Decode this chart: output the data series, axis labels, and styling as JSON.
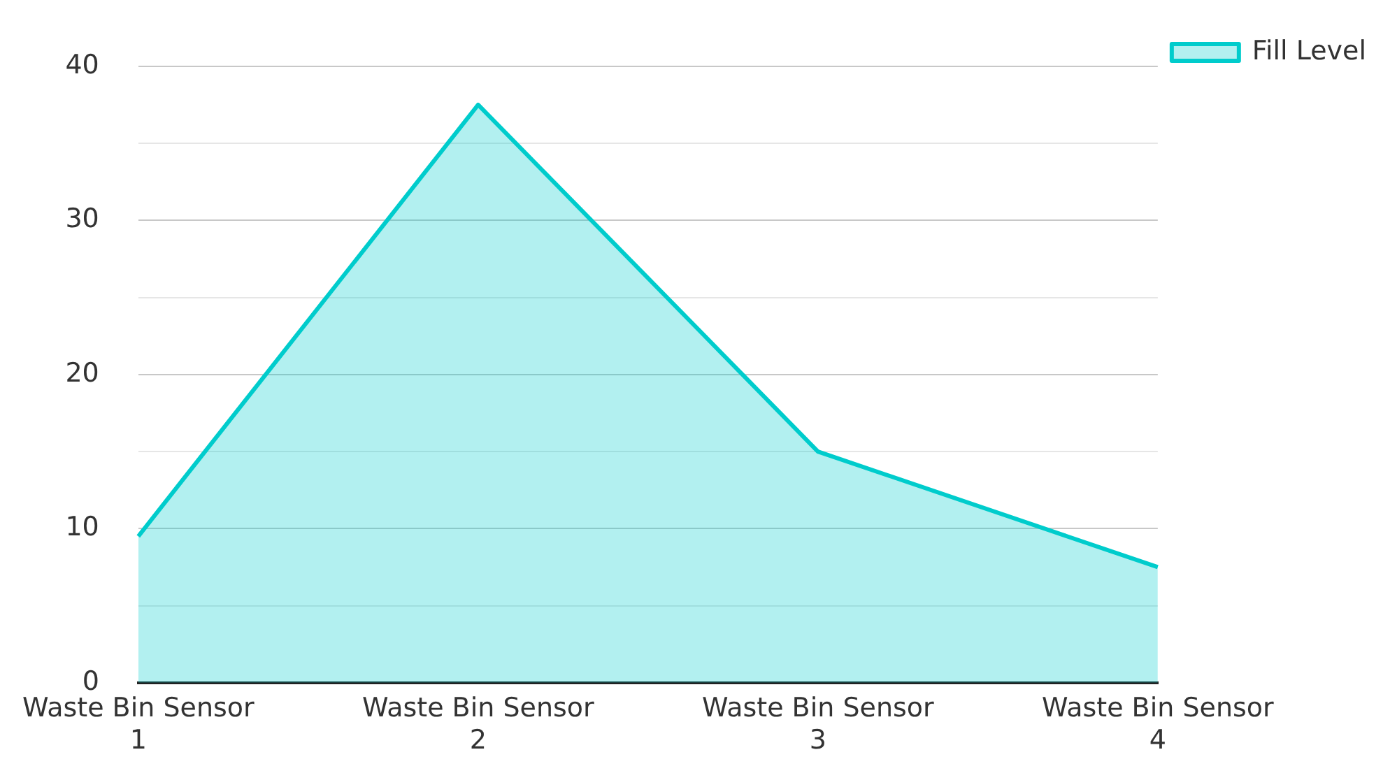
{
  "chart_data": {
    "type": "area",
    "categories": [
      "Waste Bin Sensor 1",
      "Waste Bin Sensor 2",
      "Waste Bin Sensor 3",
      "Waste Bin Sensor 4"
    ],
    "series": [
      {
        "name": "Fill Level",
        "color": "#00cccc",
        "values": [
          9.5,
          37.5,
          15,
          7.5
        ]
      }
    ],
    "ylim": [
      0,
      40
    ],
    "yticks": [
      0,
      {
        "value": 5,
        "label": null
      },
      10,
      {
        "value": 15,
        "label": null
      },
      20,
      {
        "value": 25,
        "label": null
      },
      30,
      {
        "value": 35,
        "label": null
      },
      40
    ],
    "grid": "y",
    "legend": "top right",
    "marker": "none"
  }
}
